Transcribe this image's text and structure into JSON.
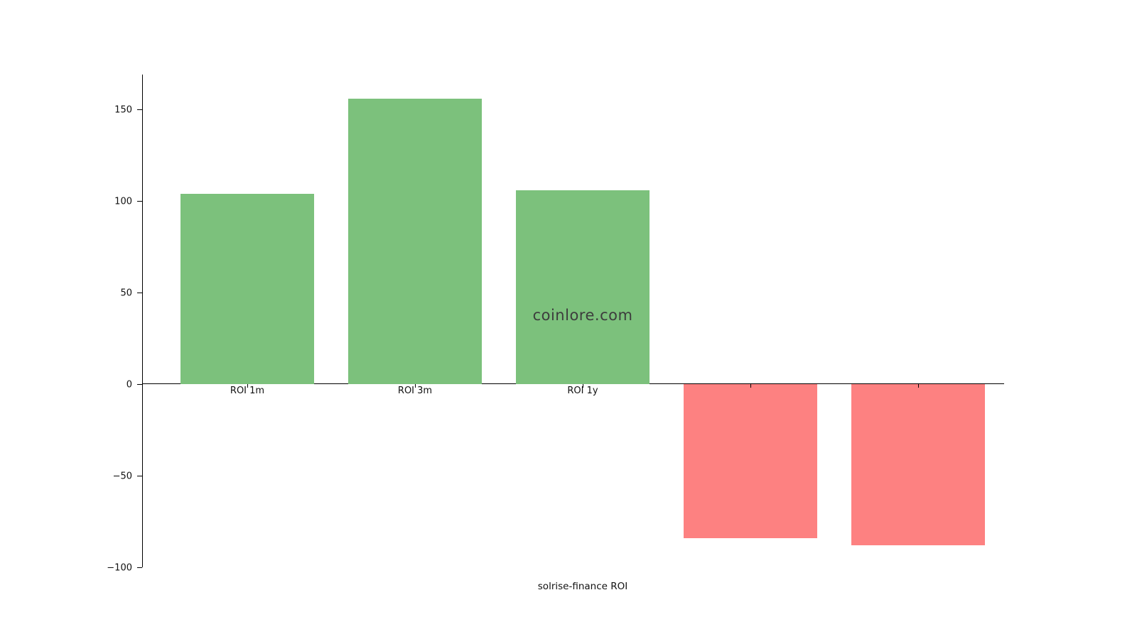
{
  "page": {
    "background": "#ffffff"
  },
  "chart_data": {
    "type": "bar",
    "title": "solrise-finance ROI",
    "watermark": "coinlore.com",
    "categories": [
      "ROI 1m",
      "ROI 3m",
      "ROI 1y",
      "",
      ""
    ],
    "values": [
      104,
      156,
      106,
      -84,
      -88
    ],
    "bar_colors": {
      "positive": "#7cc17c",
      "negative": "#fd8181"
    },
    "y_ticks": [
      150,
      100,
      50,
      0,
      -50,
      -100
    ],
    "ylim": [
      -100,
      169
    ],
    "xlabel": "",
    "ylabel": "",
    "grid": false,
    "legend": null,
    "axis_color": "#000000",
    "tick_label_color": "#111111",
    "title_color": "#111111",
    "watermark_color": "#3d3d3d"
  }
}
